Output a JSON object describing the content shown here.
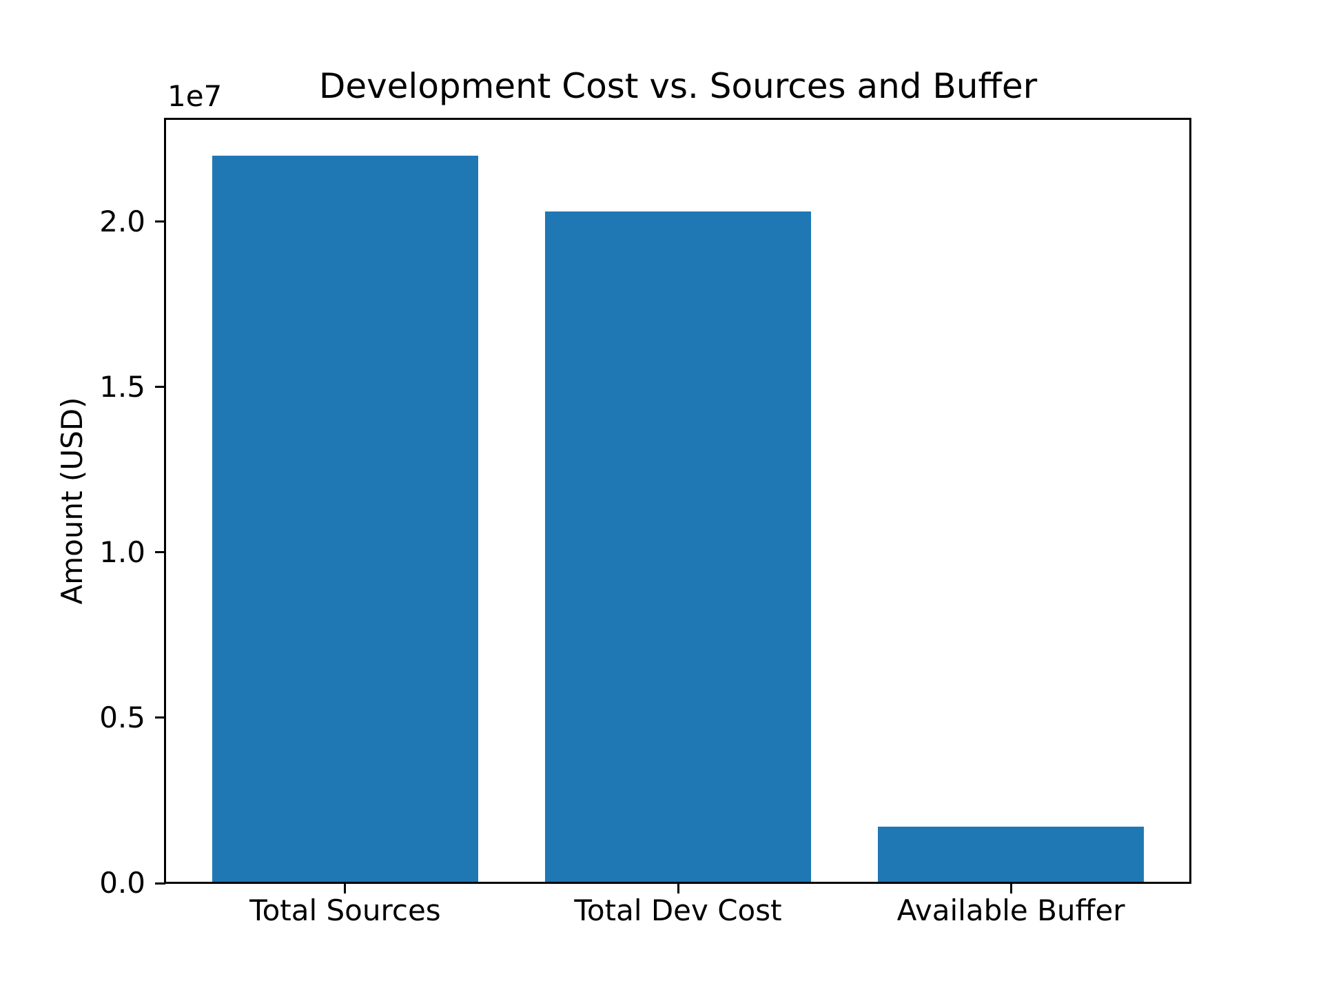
{
  "figure": {
    "background": "#ffffff",
    "text_color": "#000000"
  },
  "chart_data": {
    "type": "bar",
    "title": "Development Cost vs. Sources and Buffer",
    "xlabel": "",
    "ylabel": "Amount (USD)",
    "categories": [
      "Total Sources",
      "Total Dev Cost",
      "Available Buffer"
    ],
    "values": [
      22000000,
      20300000,
      1700000
    ],
    "bar_color": "#1f77b4",
    "ylim": [
      0,
      23100000
    ],
    "yticks": [
      0,
      5000000,
      10000000,
      15000000,
      20000000
    ],
    "ytick_labels": [
      "0.0",
      "0.5",
      "1.0",
      "1.5",
      "2.0"
    ],
    "offset_text": "1e7",
    "grid": false,
    "legend": null
  }
}
